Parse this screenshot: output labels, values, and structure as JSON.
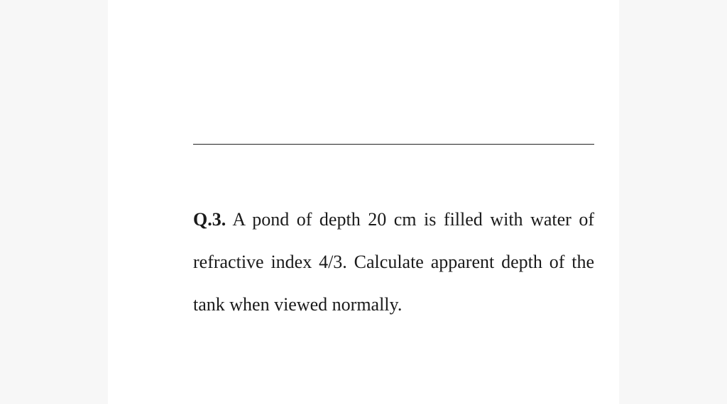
{
  "page": {
    "background_color": "#f7f7f7",
    "content_background": "#ffffff",
    "text_color": "#1a1a1a",
    "divider_color": "#222222",
    "font_family": "Georgia, serif",
    "body_fontsize": 26,
    "line_height": 2.3
  },
  "question": {
    "number": "Q.3.",
    "text": "A pond of depth 20 cm is filled with water of refractive index 4/3. Calculate apparent depth of the tank when viewed normally."
  }
}
